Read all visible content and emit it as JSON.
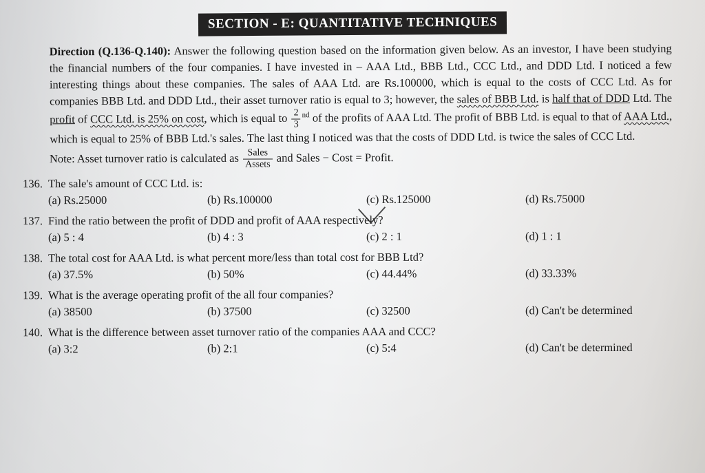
{
  "section_header": "SECTION - E: QUANTITATIVE TECHNIQUES",
  "direction_label": "Direction (Q.136-Q.140):",
  "direction_body": "Answer the following question based on the information given below.",
  "passage_1": "As an investor, I have been studying the financial numbers of the four companies. I have invested in – AAA Ltd., BBB Ltd., CCC Ltd., and DDD Ltd. I noticed a few interesting things about these companies. The sales of AAA Ltd. are Rs.100000, which is equal to the costs of CCC Ltd. As for companies BBB Ltd. and DDD Ltd., their asset turnover ratio is equal to 3; however, the ",
  "passage_sales_bbb": "sales of BBB Ltd.",
  "passage_half_ddd": "half that of DDD",
  "passage_ccc_cost": "CCC Ltd. is 25% on cost",
  "passage_2a": " is ",
  "passage_2b": " Ltd. The ",
  "passage_profit_word": "profit",
  "passage_2c": " of ",
  "passage_2d": ", which is equal to ",
  "passage_2e": " of the profits of AAA Ltd. The profit of BBB Ltd. is equal to that of ",
  "passage_aaa_ltd": "AAA Ltd.",
  "passage_2f": ", which is equal to 25% of BBB Ltd.'s sales. The last thing I noticed was that the costs of DDD Ltd. is twice the sales of CCC Ltd.",
  "note_prefix": "Note: Asset turnover ratio is calculated as ",
  "note_frac_n": "Sales",
  "note_frac_d": "Assets",
  "note_suffix": " and Sales − Cost = Profit.",
  "frac_2_3_n": "2",
  "frac_2_3_d": "3",
  "frac_2_3_sup": "nd",
  "questions": [
    {
      "num": "136.",
      "text": "The sale's amount of CCC Ltd. is:",
      "opts": {
        "a": "(a) Rs.25000",
        "b": "(b) Rs.100000",
        "c": "(c) Rs.125000",
        "d": "(d) Rs.75000"
      },
      "ticked": "c"
    },
    {
      "num": "137.",
      "text": "Find the ratio between the profit of DDD and profit of AAA respectively?",
      "opts": {
        "a": "(a) 5 : 4",
        "b": "(b) 4 : 3",
        "c": "(c) 2 : 1",
        "d": "(d) 1 : 1"
      }
    },
    {
      "num": "138.",
      "text": "The total cost for AAA Ltd. is what percent more/less than total cost for BBB Ltd?",
      "opts": {
        "a": "(a) 37.5%",
        "b": "(b) 50%",
        "c": "(c) 44.44%",
        "d": "(d) 33.33%"
      }
    },
    {
      "num": "139.",
      "text": "What is the average operating profit of the all four companies?",
      "opts": {
        "a": "(a) 38500",
        "b": "(b) 37500",
        "c": "(c) 32500",
        "d": "(d) Can't be determined"
      }
    },
    {
      "num": "140.",
      "text": "What is the difference between asset turnover ratio of the companies AAA and CCC?",
      "opts": {
        "a": "(a) 3:2",
        "b": "(b) 2:1",
        "c": "(c) 5:4",
        "d": "(d) Can't be determined"
      }
    }
  ]
}
